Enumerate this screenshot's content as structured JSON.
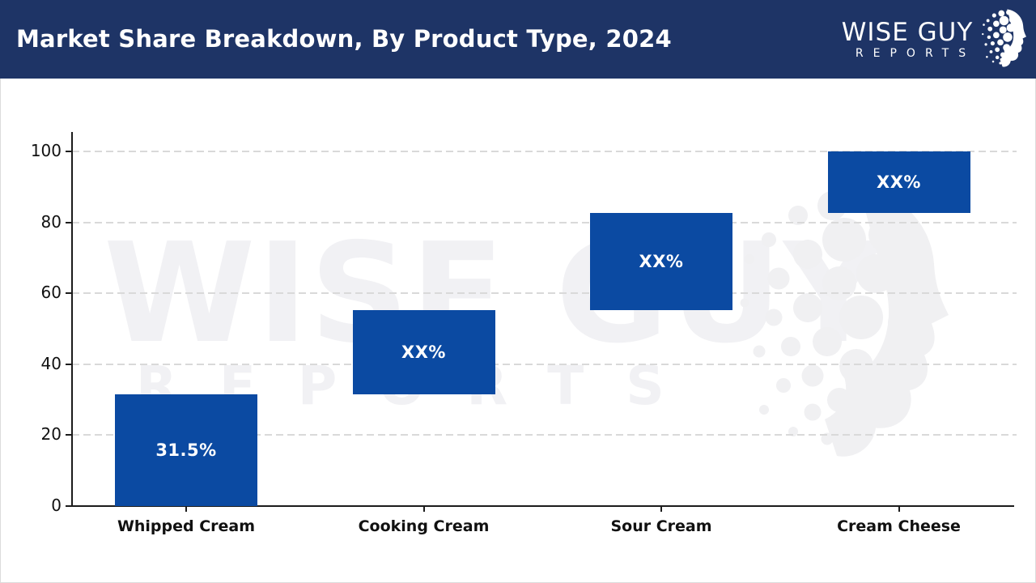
{
  "header": {
    "title": "Market Share Breakdown, By Product Type, 2024",
    "bg_color": "#1e3466",
    "logo": {
      "line1": "WISE GUY",
      "line2": "REPORTS"
    }
  },
  "watermark": {
    "line1": "WISE GUY",
    "line2": "REPORTS"
  },
  "chart_data": {
    "type": "bar",
    "subtype": "waterfall",
    "title": "Market Share Breakdown, By Product Type, 2024",
    "categories": [
      "Whipped Cream",
      "Cooking Cream",
      "Sour Cream",
      "Cream Cheese"
    ],
    "segments": [
      {
        "category": "Whipped Cream",
        "start": 0,
        "end": 31.5,
        "label": "31.5%"
      },
      {
        "category": "Cooking Cream",
        "start": 31.5,
        "end": 55.3,
        "label": "XX%"
      },
      {
        "category": "Sour Cream",
        "start": 55.3,
        "end": 82.7,
        "label": "XX%"
      },
      {
        "category": "Cream Cheese",
        "start": 82.7,
        "end": 100,
        "label": "XX%"
      }
    ],
    "ylim": [
      0,
      100
    ],
    "yticks": [
      0,
      20,
      40,
      60,
      80,
      100
    ],
    "grid": "horizontal dashed",
    "legend": "none",
    "bar_color": "#0b4aa2",
    "bar_label_color": "#ffffff",
    "axis_color": "#1c1c1c"
  }
}
